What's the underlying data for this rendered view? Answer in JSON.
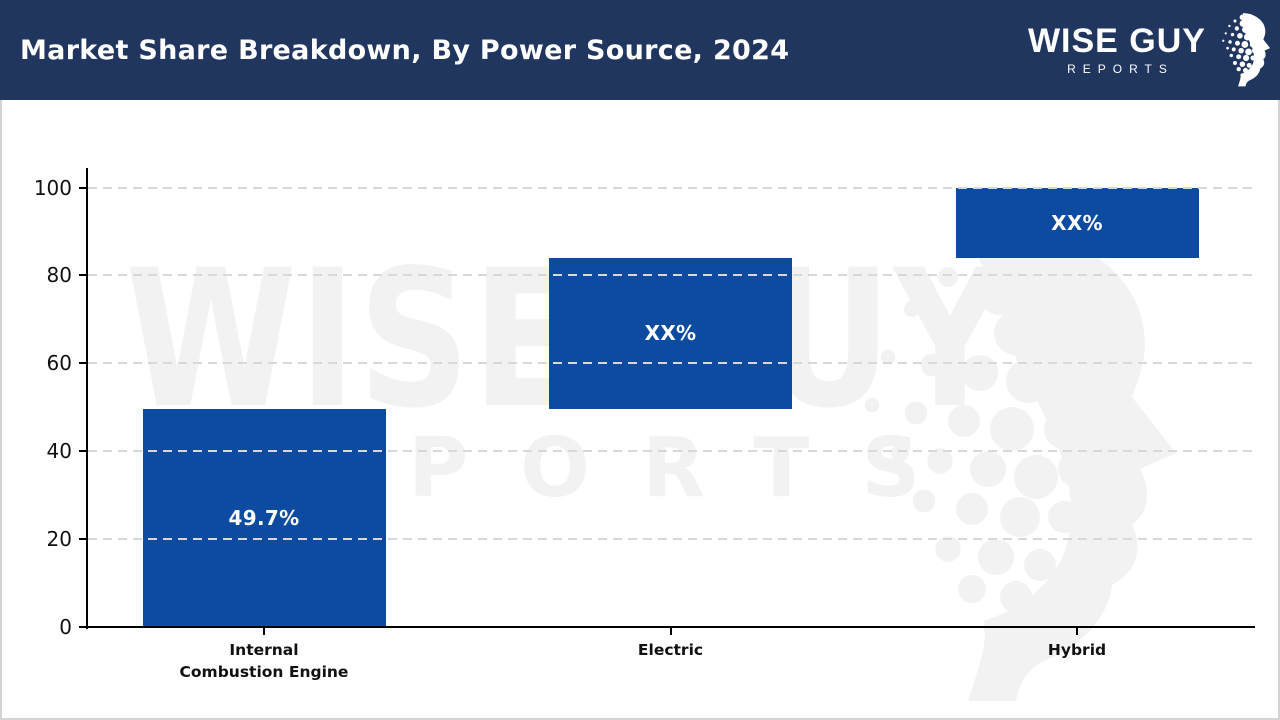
{
  "header": {
    "title": "Market Share Breakdown, By Power Source, 2024",
    "logo": {
      "name": "WISE GUY",
      "subtitle": "REPORTS"
    }
  },
  "watermark": {
    "big_text": "WISE GUY",
    "sub_text": "REPORTS"
  },
  "colors": {
    "header_bg": "#21365f",
    "bar": "#0c4b9f",
    "gridline": "#d8d8d8",
    "axis": "#000000",
    "bar_label_text": "#ffffff",
    "watermark": "#f2f2f3"
  },
  "chart_data": {
    "type": "bar",
    "variant": "floating-waterfall-percentage",
    "title": "Market Share Breakdown, By Power Source, 2024",
    "categories": [
      "Internal Combustion Engine",
      "Electric",
      "Hybrid"
    ],
    "category_label_lines": [
      [
        "Internal",
        "Combustion Engine"
      ],
      [
        "Electric"
      ],
      [
        "Hybrid"
      ]
    ],
    "segments": [
      {
        "category": "Internal Combustion Engine",
        "start": 0,
        "end": 49.7,
        "value_label": "49.7%"
      },
      {
        "category": "Electric",
        "start": 49.7,
        "end": 83.9,
        "value_label": "XX%"
      },
      {
        "category": "Hybrid",
        "start": 83.9,
        "end": 100,
        "value_label": "XX%"
      }
    ],
    "y_ticks": [
      0,
      20,
      40,
      60,
      80,
      100
    ],
    "ylim": [
      0,
      104.5
    ],
    "xlabel": "",
    "ylabel": "",
    "grid": "horizontal-dashed",
    "legend": "none"
  }
}
